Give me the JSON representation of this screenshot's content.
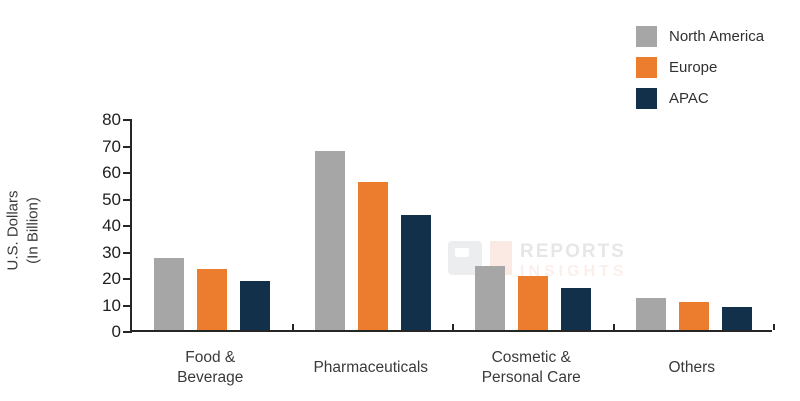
{
  "chart_data": {
    "type": "bar",
    "title": "",
    "categories": [
      "Food &\nBeverage",
      "Pharmaceuticals",
      "Cosmetic &\nPersonal Care",
      "Others"
    ],
    "series": [
      {
        "name": "North America",
        "color": "#a6a6a6",
        "values": [
          27,
          67.5,
          24,
          12
        ]
      },
      {
        "name": "Europe",
        "color": "#ec7d2f",
        "values": [
          23,
          56,
          20.5,
          10.5
        ]
      },
      {
        "name": "APAC",
        "color": "#12304a",
        "values": [
          18.5,
          43.5,
          16,
          8.5
        ]
      }
    ],
    "xlabel": "",
    "ylabel": "U.S. Dollars\n(In Billion)",
    "ylim": [
      0,
      80
    ],
    "ytick_step": 10,
    "ytick_labels": [
      "0",
      "10",
      "20",
      "30",
      "40",
      "50",
      "60",
      "70",
      "80"
    ],
    "grid": false,
    "legend_position": "top-right",
    "axis_color": "#262626",
    "text_color": "#3a3a3a"
  },
  "watermark": {
    "line1": "REPORTS",
    "line2": "INSIGHTS"
  }
}
